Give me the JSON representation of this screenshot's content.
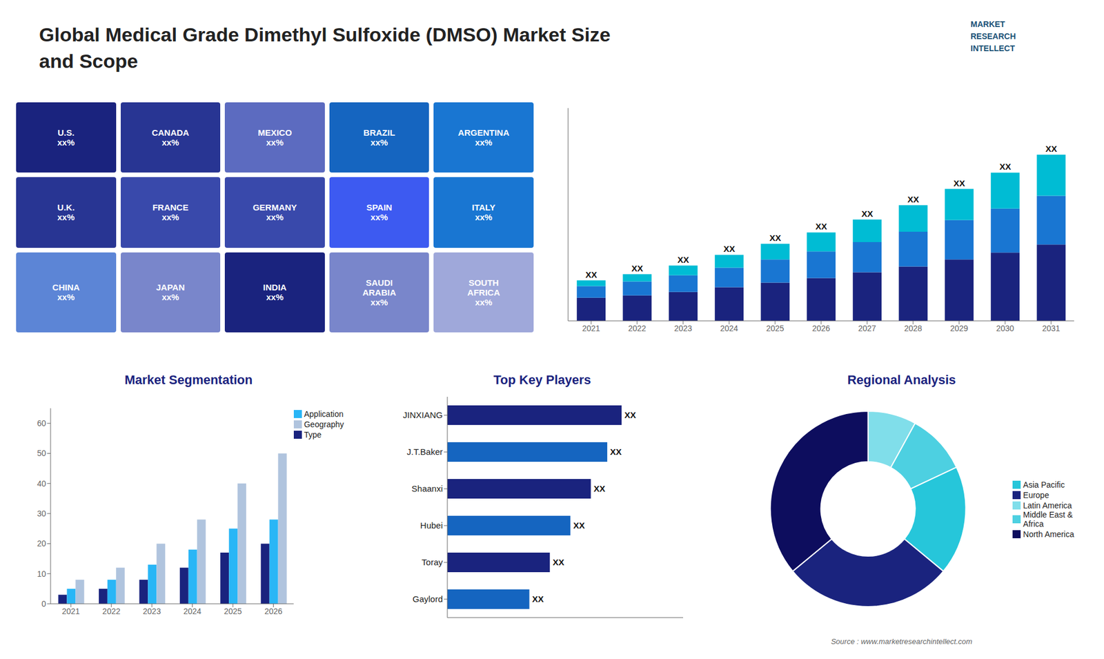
{
  "chart_data": [
    {
      "type": "bar",
      "title": "Global Medical Grade Dimethyl Sulfoxide (DMSO) Market Size\nand Scope",
      "annotations": [
        "MARKET\nRESEARCH\nINTELLECT",
        "Source : www.marketresearchintellect.com"
      ],
      "categories": [
        "2021",
        "2022",
        "2023",
        "2024",
        "2025",
        "2026",
        "2027",
        "2028",
        "2029",
        "2030",
        "2031"
      ],
      "series": [
        {
          "color": "#1a237e",
          "values": [
            1.0,
            1.1,
            1.25,
            1.45,
            1.65,
            1.85,
            2.1,
            2.35,
            2.65,
            2.95,
            3.3
          ]
        },
        {
          "color": "#1976d2",
          "values": [
            0.5,
            0.6,
            0.72,
            0.85,
            1.0,
            1.15,
            1.3,
            1.5,
            1.7,
            1.9,
            2.1
          ]
        },
        {
          "color": "#00bcd4",
          "values": [
            0.25,
            0.32,
            0.42,
            0.55,
            0.68,
            0.82,
            0.98,
            1.15,
            1.35,
            1.55,
            1.78
          ],
          "value_labels": [
            "XX",
            "XX",
            "XX",
            "XX",
            "XX",
            "XX",
            "XX",
            "XX",
            "XX",
            "XX",
            "XX"
          ]
        }
      ],
      "stacked": true,
      "ylim": [
        0,
        9.1904
      ],
      "tick_labels": "x",
      "grid": false
    },
    {
      "type": "map",
      "categories": [
        "U.S.\nxx%",
        "CANADA\nxx%",
        "MEXICO\nxx%",
        "BRAZIL\nxx%",
        "ARGENTINA\nxx%",
        "U.K.\nxx%",
        "FRANCE\nxx%",
        "GERMANY\nxx%",
        "SPAIN\nxx%",
        "ITALY\nxx%",
        "CHINA\nxx%",
        "JAPAN\nxx%",
        "INDIA\nxx%",
        "SAUDI\nARABIA\nxx%",
        "SOUTH\nAFRICA\nxx%"
      ],
      "colors": [
        "#1a237e",
        "#283593",
        "#5c6bc0",
        "#1565c0",
        "#1976d2",
        "#283593",
        "#3949ab",
        "#3949ab",
        "#3d5af1",
        "#1976d2",
        "#5c85d6",
        "#7986cb",
        "#1a237e",
        "#7986cb",
        "#9fa8da"
      ]
    },
    {
      "type": "bar",
      "title": "Market Segmentation",
      "categories": [
        "2021",
        "2022",
        "2023",
        "2024",
        "2025",
        "2026"
      ],
      "series": [
        {
          "name": "Type",
          "color": "#1a237e",
          "values": [
            3,
            5,
            8,
            12,
            17,
            20
          ]
        },
        {
          "name": "Application",
          "color": "#29b6f6",
          "values": [
            5,
            8,
            13,
            18,
            25,
            28
          ]
        },
        {
          "name": "Geography",
          "color": "#b0c4de",
          "values": [
            8,
            12,
            20,
            28,
            40,
            50
          ]
        }
      ],
      "ylim": [
        0,
        65
      ],
      "yticks": [
        0,
        10,
        20,
        30,
        40,
        50,
        60
      ],
      "legend": "upper right",
      "grid": false
    },
    {
      "type": "bar",
      "title": "Top Key Players",
      "orientation": "horizontal",
      "categories": [
        "JINXIANG",
        "J.T.Baker",
        "Shaanxi",
        "Hubei",
        "Toray",
        "Gaylord"
      ],
      "values": [
        0.85,
        0.78,
        0.7,
        0.6,
        0.5,
        0.4
      ],
      "value_labels": [
        "XX",
        "XX",
        "XX",
        "XX",
        "XX",
        "XX"
      ],
      "colors": [
        "#1a237e",
        "#1565c0",
        "#1a237e",
        "#1565c0",
        "#1a237e",
        "#1565c0"
      ],
      "xlim": [
        0,
        1.15
      ],
      "tick_labels": "y",
      "grid": false
    },
    {
      "type": "pie",
      "title": "Regional Analysis",
      "categories": [
        "Latin America",
        "Middle East &\nAfrica",
        "Asia Pacific",
        "Europe",
        "North America"
      ],
      "values": [
        8,
        10,
        18,
        28,
        36
      ],
      "colors": [
        "#80deea",
        "#4dd0e1",
        "#26c6da",
        "#1a237e",
        "#0d0d5e"
      ],
      "legend": "right"
    }
  ]
}
